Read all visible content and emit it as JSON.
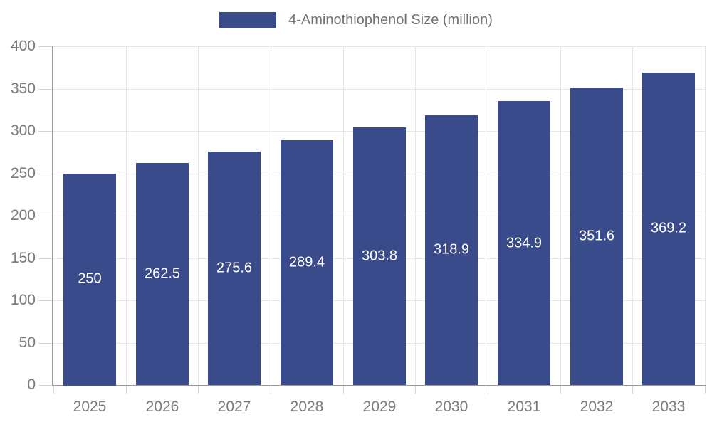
{
  "chart_data": {
    "type": "bar",
    "title": "",
    "legend_label": "4-Aminothiophenol Size (million)",
    "legend_position": "top",
    "categories": [
      "2025",
      "2026",
      "2027",
      "2028",
      "2029",
      "2030",
      "2031",
      "2032",
      "2033"
    ],
    "values": [
      250,
      262.5,
      275.6,
      289.4,
      303.8,
      318.9,
      334.9,
      351.6,
      369.2
    ],
    "value_labels": [
      "250",
      "262.5",
      "275.6",
      "289.4",
      "303.8",
      "318.9",
      "334.9",
      "351.6",
      "369.2"
    ],
    "xlabel": "",
    "ylabel": "",
    "ylim": [
      0,
      400
    ],
    "yticks": [
      0,
      50,
      100,
      150,
      200,
      250,
      300,
      350,
      400
    ],
    "grid": "on",
    "colors": {
      "bar": "#3A4B8C",
      "bar_label": "#ffffff",
      "gridline": "#e6e6e6",
      "tick": "#d4d4d4",
      "axis_line": "#9a9a9a",
      "axis_text": "#7b7b7b",
      "legend_text": "#717178",
      "background": "#ffffff"
    }
  }
}
